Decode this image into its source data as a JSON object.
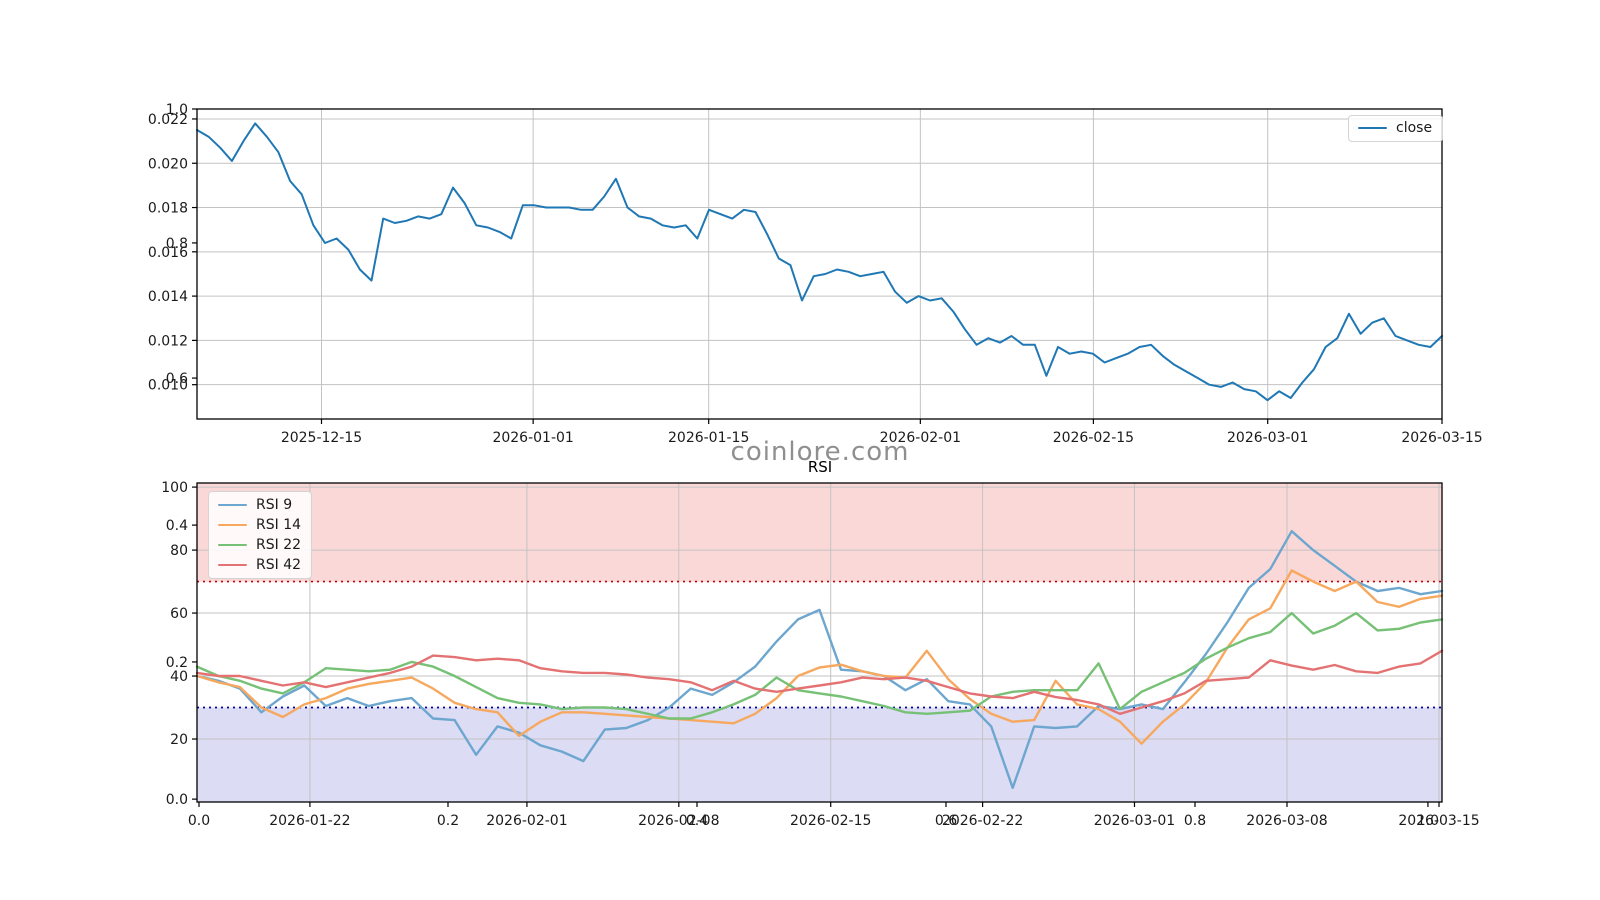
{
  "watermark": "coinlore.com",
  "price_legend": {
    "label": "close",
    "color": "#1f77b4"
  },
  "rsi_legend": {
    "items": [
      {
        "label": "RSI 9",
        "color": "#6da6ce"
      },
      {
        "label": "RSI 14",
        "color": "#f7a85f"
      },
      {
        "label": "RSI 22",
        "color": "#76c176"
      },
      {
        "label": "RSI 42",
        "color": "#e47273"
      }
    ]
  },
  "style": {
    "grid_color": "#c3c3c3",
    "spine_color": "#000000",
    "tick_text_color": "#1a1a1a",
    "overbought_band": "#fbd8d8",
    "oversold_band": "#dcdcf4",
    "overbought_line": "#c00000",
    "oversold_line": "#0000a0"
  },
  "chart_data": [
    {
      "type": "line",
      "name": "price",
      "title": "",
      "legend_entries": [
        "close"
      ],
      "ylabel": "",
      "xlabel": "",
      "ylim": [
        0.00845,
        0.02245
      ],
      "grid": true,
      "yticks": [
        {
          "label": "0.022",
          "v": 0.022
        },
        {
          "label": "0.020",
          "v": 0.02
        },
        {
          "label": "0.018",
          "v": 0.018
        },
        {
          "label": "0.016",
          "v": 0.016
        },
        {
          "label": "0.014",
          "v": 0.014
        },
        {
          "label": "0.012",
          "v": 0.012
        },
        {
          "label": "0.010",
          "v": 0.01
        }
      ],
      "xticks": [
        {
          "label": "2025-12-15",
          "f": 0.1
        },
        {
          "label": "2026-01-01",
          "f": 0.27
        },
        {
          "label": "2026-01-15",
          "f": 0.411
        },
        {
          "label": "2026-02-01",
          "f": 0.581
        },
        {
          "label": "2026-02-15",
          "f": 0.72
        },
        {
          "label": "2026-03-01",
          "f": 0.86
        },
        {
          "label": "2026-03-15",
          "f": 1.0
        }
      ],
      "extra_yticks": [
        {
          "label": "1.0",
          "f": 0.0
        },
        {
          "label": "0.8",
          "f": 0.432
        },
        {
          "label": "0.6",
          "f": 0.868
        }
      ],
      "series": [
        {
          "name": "close",
          "color": "#1f77b4",
          "width": 2,
          "values": [
            0.0215,
            0.0212,
            0.0207,
            0.0201,
            0.021,
            0.0218,
            0.0212,
            0.0205,
            0.0192,
            0.0186,
            0.0172,
            0.0164,
            0.0166,
            0.0161,
            0.0152,
            0.0147,
            0.0175,
            0.0173,
            0.0174,
            0.0176,
            0.0175,
            0.0177,
            0.0189,
            0.0182,
            0.0172,
            0.0171,
            0.0169,
            0.0166,
            0.0181,
            0.0181,
            0.018,
            0.018,
            0.018,
            0.0179,
            0.0179,
            0.0185,
            0.0193,
            0.018,
            0.0176,
            0.0175,
            0.0172,
            0.0171,
            0.0172,
            0.0166,
            0.0179,
            0.0177,
            0.0175,
            0.0179,
            0.0178,
            0.0168,
            0.0157,
            0.0154,
            0.0138,
            0.0149,
            0.015,
            0.0152,
            0.0151,
            0.0149,
            0.015,
            0.0151,
            0.0142,
            0.0137,
            0.014,
            0.0138,
            0.0139,
            0.0133,
            0.0125,
            0.0118,
            0.0121,
            0.0119,
            0.0122,
            0.0118,
            0.0118,
            0.0104,
            0.0117,
            0.0114,
            0.0115,
            0.0114,
            0.011,
            0.0112,
            0.0114,
            0.0117,
            0.0118,
            0.0113,
            0.0109,
            0.0106,
            0.0103,
            0.01,
            0.0099,
            0.0101,
            0.0098,
            0.0097,
            0.0093,
            0.0097,
            0.0094,
            0.0101,
            0.0107,
            0.0117,
            0.0121,
            0.0132,
            0.0123,
            0.0128,
            0.013,
            0.0122,
            0.012,
            0.0118,
            0.0117,
            0.0122
          ]
        }
      ]
    },
    {
      "type": "line",
      "name": "rsi",
      "title": "RSI",
      "ylim": [
        0,
        101.3
      ],
      "grid": true,
      "yticks": [
        {
          "label": "100",
          "v": 100
        },
        {
          "label": "80",
          "v": 80
        },
        {
          "label": "60",
          "v": 60
        },
        {
          "label": "40",
          "v": 40
        },
        {
          "label": "20",
          "v": 20
        }
      ],
      "xticks": [
        {
          "label": "2026-01-22",
          "f": 0.0907
        },
        {
          "label": "2026-02-01",
          "f": 0.265
        },
        {
          "label": "2026-02-08",
          "f": 0.387
        },
        {
          "label": "2026-02-15",
          "f": 0.509
        },
        {
          "label": "2026-02-22",
          "f": 0.631
        },
        {
          "label": "2026-03-01",
          "f": 0.753
        },
        {
          "label": "2026-03-08",
          "f": 0.8755
        },
        {
          "label": "2026-03-15",
          "f": 0.9976
        }
      ],
      "extra_xticks": [
        {
          "label": "0.0",
          "f": 0.0016
        },
        {
          "label": "0.2",
          "f": 0.2016
        },
        {
          "label": "0.4",
          "f": 0.4016
        },
        {
          "label": "0.6",
          "f": 0.6016
        },
        {
          "label": "0.8",
          "f": 0.8016
        },
        {
          "label": "1.0",
          "f": 0.9887
        }
      ],
      "extra_yticks": [
        {
          "label": "0.4",
          "f": 0.132
        },
        {
          "label": "0.2",
          "f": 0.561
        },
        {
          "label": "0.0",
          "f": 0.991
        }
      ],
      "bands": [
        {
          "from": 70,
          "to": 101.3,
          "color": "#fbd8d8",
          "name": "overbought-band"
        },
        {
          "from": 0,
          "to": 30,
          "color": "#dcdcf4",
          "name": "oversold-band"
        }
      ],
      "hlines": [
        {
          "v": 70,
          "color": "#c00000",
          "name": "overbought-threshold"
        },
        {
          "v": 30,
          "color": "#0000a0",
          "name": "oversold-threshold"
        }
      ],
      "series": [
        {
          "name": "RSI 9",
          "color": "#6da6ce",
          "width": 2.4,
          "values": [
            40,
            38.5,
            36,
            28.5,
            33.5,
            37,
            30.5,
            33,
            30.5,
            32,
            33,
            26.5,
            26,
            15,
            24,
            22,
            18,
            16,
            13,
            23,
            23.5,
            26,
            30,
            36,
            34,
            38,
            43,
            51,
            58,
            61,
            42,
            41.5,
            40,
            35.5,
            39,
            32,
            31,
            24,
            4.5,
            24,
            23.5,
            24,
            30.5,
            29.5,
            31,
            29.5,
            38,
            47,
            57,
            68,
            74,
            86,
            80,
            75,
            70,
            67,
            68,
            66,
            67
          ]
        },
        {
          "name": "RSI 14",
          "color": "#f7a85f",
          "width": 2.4,
          "values": [
            40,
            38,
            36.5,
            30,
            27,
            31,
            33,
            36,
            37.5,
            38.5,
            39.5,
            36,
            31.5,
            29.5,
            28.5,
            21,
            25.5,
            28.5,
            28.5,
            28,
            27.5,
            27,
            26.5,
            26,
            25.5,
            25,
            28,
            33,
            40,
            42.7,
            43.6,
            41.5,
            40,
            39.5,
            48,
            39,
            32.7,
            28,
            25.5,
            26,
            38.5,
            31,
            29.5,
            25.5,
            18.5,
            25.5,
            31,
            38,
            49,
            58,
            61.5,
            73.5,
            70,
            67,
            70,
            63.5,
            62,
            64.5,
            65.5
          ]
        },
        {
          "name": "RSI 22",
          "color": "#76c176",
          "width": 2.4,
          "values": [
            43,
            40,
            38.5,
            36,
            34.5,
            38,
            42.5,
            42,
            41.5,
            42,
            44.5,
            43,
            40,
            36.5,
            33,
            31.5,
            31,
            29.5,
            30,
            30,
            29.5,
            28,
            26.5,
            26.5,
            28.5,
            31,
            34,
            39.5,
            35.5,
            34.5,
            33.5,
            32,
            30.5,
            28.5,
            28,
            28.5,
            29,
            33.5,
            35,
            35.5,
            35.5,
            35.5,
            44,
            29.5,
            35,
            38,
            41,
            45.5,
            49,
            52,
            54,
            60,
            53.5,
            56,
            60,
            54.5,
            55,
            57,
            58
          ]
        },
        {
          "name": "RSI 42",
          "color": "#e47273",
          "width": 2.4,
          "values": [
            41,
            40,
            40,
            38.5,
            37,
            38,
            36.5,
            38,
            39.5,
            41,
            43,
            46.5,
            46,
            45,
            45.5,
            45,
            42.5,
            41.5,
            41,
            41,
            40.5,
            39.5,
            39,
            38,
            35.5,
            38.5,
            36,
            35,
            36,
            37,
            38,
            39.5,
            39,
            39.5,
            38.5,
            36.5,
            34.5,
            33.5,
            33,
            35,
            33.3,
            32.4,
            31,
            28,
            30,
            32,
            34.5,
            38.5,
            39,
            39.5,
            45,
            43.3,
            42,
            43.5,
            41.5,
            41,
            43,
            44,
            48
          ]
        }
      ]
    }
  ]
}
